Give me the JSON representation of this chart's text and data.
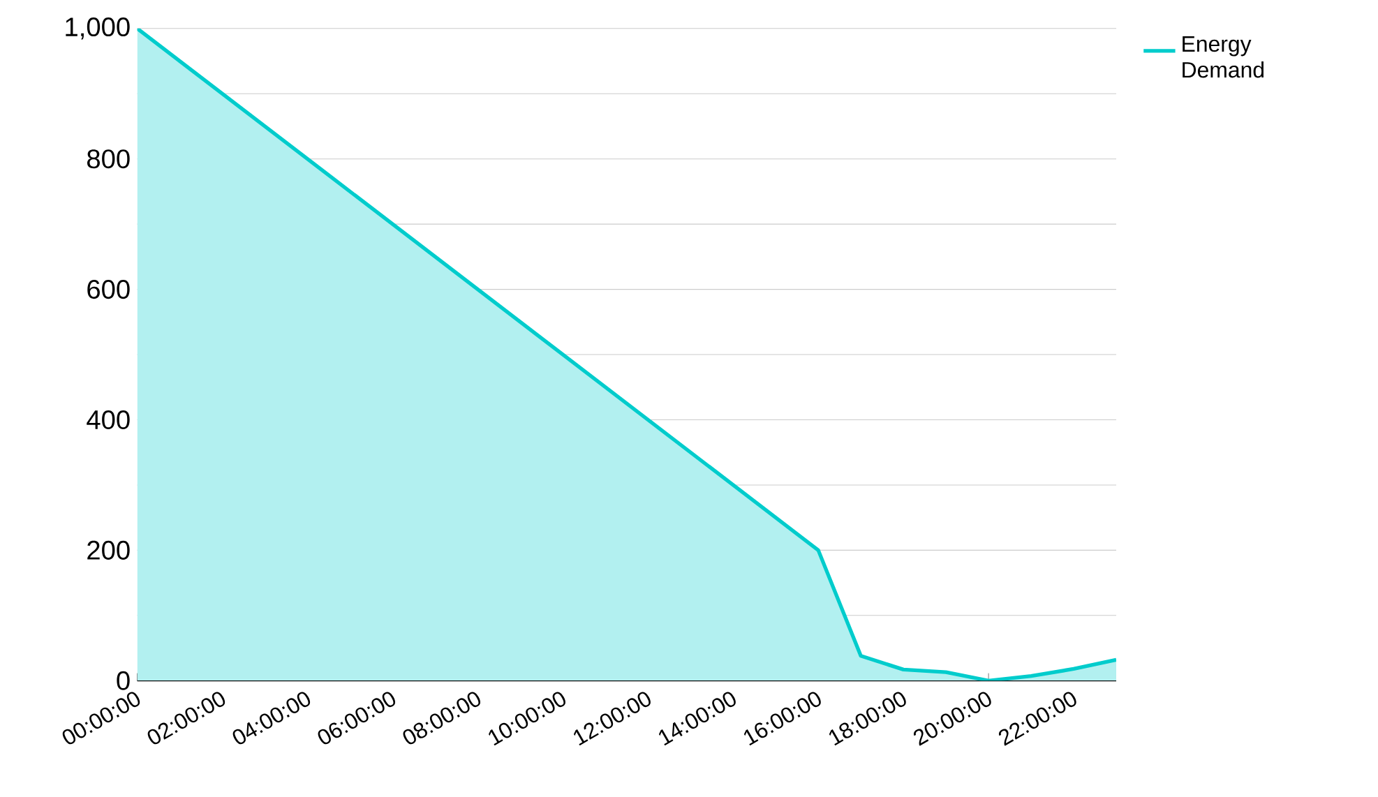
{
  "chart_data": {
    "type": "area",
    "x": [
      0,
      16,
      17,
      18,
      19,
      20,
      21,
      22,
      23
    ],
    "series": [
      {
        "name": "Energy Demand",
        "color": "#00cccc",
        "values": [
          1000,
          200,
          38,
          17,
          13,
          0,
          7,
          18,
          32
        ]
      }
    ],
    "xlim": [
      0,
      23
    ],
    "xticks": [
      {
        "value": 0,
        "label": "00:00:00"
      },
      {
        "value": 2,
        "label": "02:00:00"
      },
      {
        "value": 4,
        "label": "04:00:00"
      },
      {
        "value": 6,
        "label": "06:00:00"
      },
      {
        "value": 8,
        "label": "08:00:00"
      },
      {
        "value": 10,
        "label": "10:00:00"
      },
      {
        "value": 12,
        "label": "12:00:00"
      },
      {
        "value": 14,
        "label": "14:00:00"
      },
      {
        "value": 16,
        "label": "16:00:00"
      },
      {
        "value": 18,
        "label": "18:00:00"
      },
      {
        "value": 20,
        "label": "20:00:00"
      },
      {
        "value": 22,
        "label": "22:00:00"
      }
    ],
    "ylim": [
      0,
      1000
    ],
    "yticks": [
      0,
      {
        "value": 100,
        "label": null
      },
      200,
      {
        "value": 300,
        "label": null
      },
      400,
      {
        "value": 500,
        "label": null
      },
      600,
      {
        "value": 700,
        "label": null
      },
      800,
      {
        "value": 900,
        "label": null
      },
      {
        "value": 1000,
        "label": "1,000"
      }
    ],
    "grid": "y",
    "legend": "top right"
  }
}
